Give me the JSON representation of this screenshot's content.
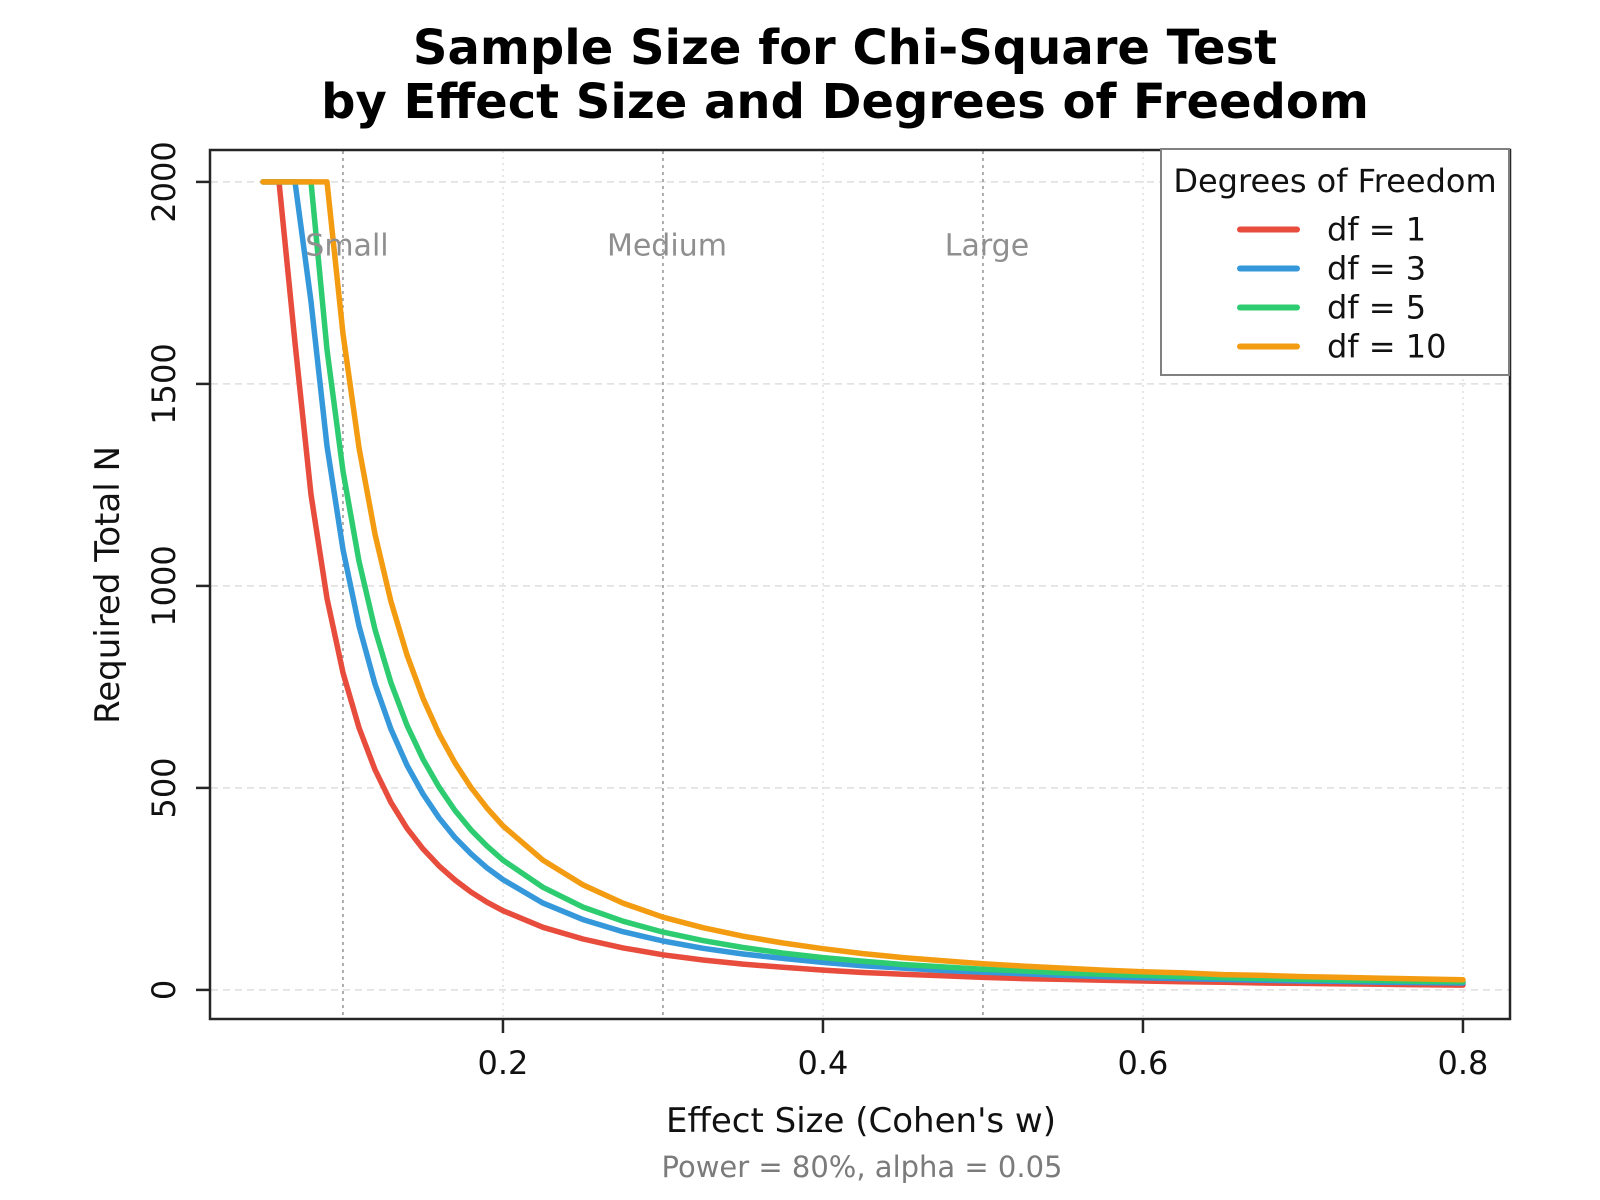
{
  "title": {
    "line1": "Sample Size for Chi-Square Test",
    "line2": "by Effect Size and Degrees of Freedom"
  },
  "x_axis": {
    "title": "Effect Size (Cohen's w)",
    "tick_labels": [
      "0.2",
      "0.4",
      "0.6",
      "0.8"
    ],
    "tick_values": [
      0.2,
      0.4,
      0.6,
      0.8
    ]
  },
  "y_axis": {
    "title": "Required Total N",
    "tick_labels": [
      "0",
      "500",
      "1000",
      "1500",
      "2000"
    ],
    "tick_values": [
      0,
      500,
      1000,
      1500,
      2000
    ]
  },
  "subtitle": "Power = 80%, alpha = 0.05",
  "reference_lines": [
    {
      "label": "Small",
      "x": 0.1
    },
    {
      "label": "Medium",
      "x": 0.3
    },
    {
      "label": "Large",
      "x": 0.5
    }
  ],
  "legend": {
    "title": "Degrees of Freedom",
    "entries": [
      {
        "label": "df = 1",
        "color": "#E74C3C"
      },
      {
        "label": "df = 3",
        "color": "#3498DB"
      },
      {
        "label": "df = 5",
        "color": "#2ECC71"
      },
      {
        "label": "df = 10",
        "color": "#F39C12"
      }
    ]
  },
  "colors": {
    "df1": "#E74C3C",
    "df3": "#3498DB",
    "df5": "#2ECC71",
    "df10": "#F39C12",
    "plot_border": "#262626",
    "tick": "#262626",
    "grid_light": "#dedede",
    "reference_gray": "#9a9a9a",
    "muted_text": "#7b7b7b",
    "background": "#ffffff"
  },
  "chart_data": {
    "type": "line",
    "title": "Sample Size for Chi-Square Test by Effect Size and Degrees of Freedom",
    "xlabel": "Effect Size (Cohen's w)",
    "ylabel": "Required Total N",
    "annotation": "Power = 80%, alpha = 0.05",
    "legend_position": "top-right",
    "grid": "light dashed gridlines at axis ticks; gray dashed reference lines at x = 0.1 (Small), 0.3 (Medium), 0.5 (Large)",
    "y_cap": 2000,
    "x_data_range": [
      0.05,
      0.8
    ],
    "y_data_range": [
      0,
      2000
    ],
    "xlim": [
      0.0169,
      0.8294
    ],
    "ylim": [
      -72,
      2079
    ],
    "x_ticks": [
      0.2,
      0.4,
      0.6,
      0.8
    ],
    "y_ticks": [
      0,
      500,
      1000,
      1500,
      2000
    ],
    "x": [
      0.05,
      0.06,
      0.07,
      0.08,
      0.09,
      0.1,
      0.11,
      0.12,
      0.13,
      0.14,
      0.15,
      0.16,
      0.17,
      0.18,
      0.19,
      0.2,
      0.225,
      0.25,
      0.275,
      0.3,
      0.325,
      0.35,
      0.375,
      0.4,
      0.425,
      0.45,
      0.475,
      0.5,
      0.525,
      0.55,
      0.575,
      0.6,
      0.625,
      0.65,
      0.675,
      0.7,
      0.725,
      0.75,
      0.775,
      0.8
    ],
    "series": [
      {
        "name": "df = 1",
        "color": "#E74C3C",
        "values": [
          2000,
          2000,
          1602,
          1226,
          969,
          785,
          649,
          545,
          464,
          400,
          349,
          307,
          272,
          242,
          217,
          196,
          155,
          126,
          104,
          87,
          74,
          64,
          56,
          49,
          43,
          39,
          35,
          31,
          28,
          26,
          24,
          22,
          20,
          19,
          17,
          16,
          15,
          14,
          13,
          12
        ]
      },
      {
        "name": "df = 3",
        "color": "#3498DB",
        "values": [
          2000,
          2000,
          2000,
          1704,
          1346,
          1090,
          901,
          757,
          645,
          556,
          485,
          426,
          377,
          337,
          302,
          273,
          215,
          174,
          144,
          121,
          103,
          89,
          78,
          68,
          60,
          54,
          48,
          44,
          40,
          36,
          33,
          30,
          28,
          26,
          24,
          22,
          21,
          19,
          18,
          17
        ]
      },
      {
        "name": "df = 5",
        "color": "#2ECC71",
        "values": [
          2000,
          2000,
          2000,
          2000,
          1585,
          1284,
          1061,
          892,
          760,
          655,
          571,
          502,
          444,
          396,
          356,
          321,
          254,
          205,
          170,
          143,
          122,
          105,
          91,
          80,
          71,
          63,
          57,
          51,
          47,
          42,
          39,
          36,
          33,
          30,
          28,
          26,
          24,
          23,
          21,
          20
        ]
      },
      {
        "name": "df = 10",
        "color": "#F39C12",
        "values": [
          2000,
          2000,
          2000,
          2000,
          2000,
          1624,
          1342,
          1128,
          961,
          829,
          722,
          634,
          562,
          501,
          450,
          406,
          321,
          260,
          215,
          180,
          154,
          133,
          116,
          102,
          90,
          80,
          72,
          65,
          59,
          54,
          49,
          45,
          42,
          38,
          36,
          33,
          31,
          29,
          27,
          25
        ]
      }
    ]
  }
}
